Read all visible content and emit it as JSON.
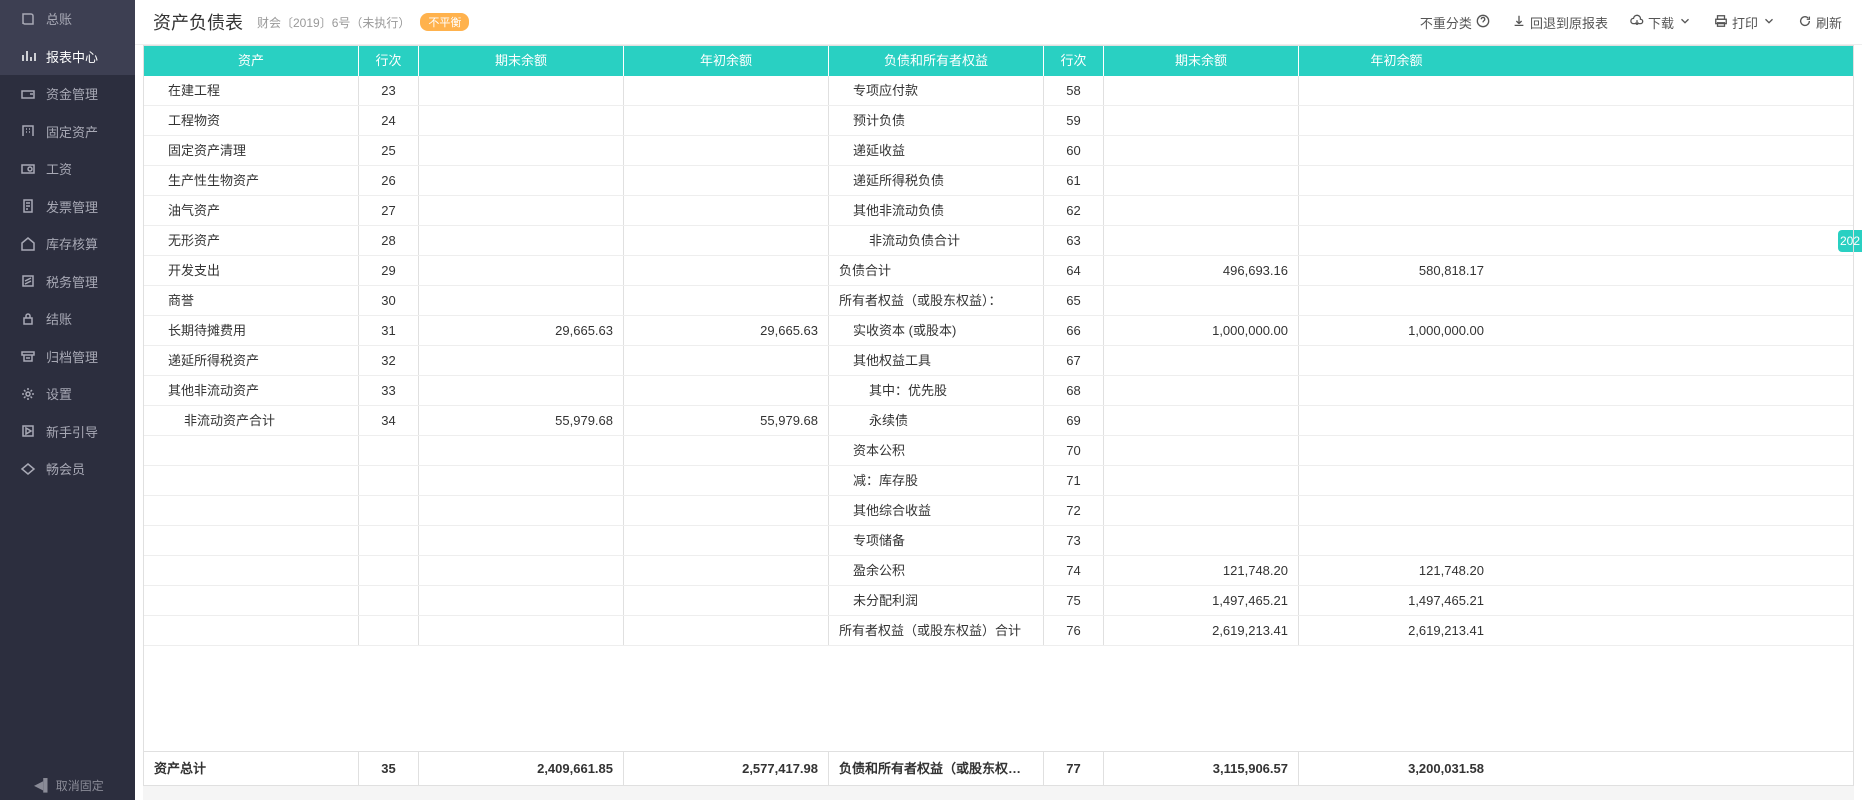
{
  "sidebar": {
    "items": [
      {
        "label": "总账",
        "icon": "book"
      },
      {
        "label": "报表中心",
        "icon": "chart",
        "active": true
      },
      {
        "label": "资金管理",
        "icon": "wallet"
      },
      {
        "label": "固定资产",
        "icon": "building"
      },
      {
        "label": "工资",
        "icon": "money"
      },
      {
        "label": "发票管理",
        "icon": "invoice"
      },
      {
        "label": "库存核算",
        "icon": "home"
      },
      {
        "label": "税务管理",
        "icon": "tax"
      },
      {
        "label": "结账",
        "icon": "lock"
      },
      {
        "label": "归档管理",
        "icon": "archive"
      },
      {
        "label": "设置",
        "icon": "gear"
      },
      {
        "label": "新手引导",
        "icon": "play"
      },
      {
        "label": "畅会员",
        "icon": "vip"
      }
    ],
    "pin": "取消固定"
  },
  "header": {
    "title": "资产负债表",
    "sub": "财会〔2019〕6号（未执行）",
    "badge": "不平衡",
    "actions": {
      "noClassify": "不重分类",
      "revert": "回退到原报表",
      "download": "下载",
      "print": "打印",
      "refresh": "刷新"
    }
  },
  "yearTab": "202",
  "table": {
    "columns": {
      "asset": "资产",
      "rowNo": "行次",
      "end": "期末余额",
      "begin": "年初余额",
      "liab": "负债和所有者权益",
      "rowNo2": "行次",
      "end2": "期末余额",
      "begin2": "年初余额"
    },
    "rows": [
      {
        "a": "在建工程",
        "ai": 1,
        "ar": "23",
        "ae": "",
        "ab": "",
        "l": "专项应付款",
        "li": 1,
        "lr": "58",
        "le": "",
        "lb": ""
      },
      {
        "a": "工程物资",
        "ai": 1,
        "ar": "24",
        "ae": "",
        "ab": "",
        "l": "预计负债",
        "li": 1,
        "lr": "59",
        "le": "",
        "lb": ""
      },
      {
        "a": "固定资产清理",
        "ai": 1,
        "ar": "25",
        "ae": "",
        "ab": "",
        "l": "递延收益",
        "li": 1,
        "lr": "60",
        "le": "",
        "lb": ""
      },
      {
        "a": "生产性生物资产",
        "ai": 1,
        "ar": "26",
        "ae": "",
        "ab": "",
        "l": "递延所得税负债",
        "li": 1,
        "lr": "61",
        "le": "",
        "lb": ""
      },
      {
        "a": "油气资产",
        "ai": 1,
        "ar": "27",
        "ae": "",
        "ab": "",
        "l": "其他非流动负债",
        "li": 1,
        "lr": "62",
        "le": "",
        "lb": ""
      },
      {
        "a": "无形资产",
        "ai": 1,
        "ar": "28",
        "ae": "",
        "ab": "",
        "l": "非流动负债合计",
        "li": 2,
        "lr": "63",
        "le": "",
        "lb": ""
      },
      {
        "a": "开发支出",
        "ai": 1,
        "ar": "29",
        "ae": "",
        "ab": "",
        "l": "负债合计",
        "li": 0,
        "lr": "64",
        "le": "496,693.16",
        "lb": "580,818.17"
      },
      {
        "a": "商誉",
        "ai": 1,
        "ar": "30",
        "ae": "",
        "ab": "",
        "l": "所有者权益（或股东权益）：",
        "li": 0,
        "lr": "65",
        "le": "",
        "lb": ""
      },
      {
        "a": "长期待摊费用",
        "ai": 1,
        "ar": "31",
        "ae": "29,665.63",
        "ab": "29,665.63",
        "l": "实收资本 (或股本)",
        "li": 1,
        "lr": "66",
        "le": "1,000,000.00",
        "lb": "1,000,000.00"
      },
      {
        "a": "递延所得税资产",
        "ai": 1,
        "ar": "32",
        "ae": "",
        "ab": "",
        "l": "其他权益工具",
        "li": 1,
        "lr": "67",
        "le": "",
        "lb": ""
      },
      {
        "a": "其他非流动资产",
        "ai": 1,
        "ar": "33",
        "ae": "",
        "ab": "",
        "l": "其中：优先股",
        "li": 2,
        "lr": "68",
        "le": "",
        "lb": ""
      },
      {
        "a": "非流动资产合计",
        "ai": 2,
        "ar": "34",
        "ae": "55,979.68",
        "ab": "55,979.68",
        "l": "永续债",
        "li": 2,
        "lr": "69",
        "le": "",
        "lb": ""
      },
      {
        "a": "",
        "ai": 0,
        "ar": "",
        "ae": "",
        "ab": "",
        "l": "资本公积",
        "li": 1,
        "lr": "70",
        "le": "",
        "lb": ""
      },
      {
        "a": "",
        "ai": 0,
        "ar": "",
        "ae": "",
        "ab": "",
        "l": "减：库存股",
        "li": 1,
        "lr": "71",
        "le": "",
        "lb": ""
      },
      {
        "a": "",
        "ai": 0,
        "ar": "",
        "ae": "",
        "ab": "",
        "l": "其他综合收益",
        "li": 1,
        "lr": "72",
        "le": "",
        "lb": ""
      },
      {
        "a": "",
        "ai": 0,
        "ar": "",
        "ae": "",
        "ab": "",
        "l": "专项储备",
        "li": 1,
        "lr": "73",
        "le": "",
        "lb": ""
      },
      {
        "a": "",
        "ai": 0,
        "ar": "",
        "ae": "",
        "ab": "",
        "l": "盈余公积",
        "li": 1,
        "lr": "74",
        "le": "121,748.20",
        "lb": "121,748.20"
      },
      {
        "a": "",
        "ai": 0,
        "ar": "",
        "ae": "",
        "ab": "",
        "l": "未分配利润",
        "li": 1,
        "lr": "75",
        "le": "1,497,465.21",
        "lb": "1,497,465.21"
      },
      {
        "a": "",
        "ai": 0,
        "ar": "",
        "ae": "",
        "ab": "",
        "l": "所有者权益（或股东权益）合计",
        "li": 0,
        "lr": "76",
        "le": "2,619,213.41",
        "lb": "2,619,213.41"
      }
    ],
    "footer": {
      "assetTotal": "资产总计",
      "ar": "35",
      "ae": "2,409,661.85",
      "ab": "2,577,417.98",
      "liabTotal": "负债和所有者权益（或股东权益）总计",
      "lr": "77",
      "le": "3,115,906.57",
      "lb": "3,200,031.58"
    }
  },
  "colors": {
    "headerBg": "#29d0c2",
    "sidebarBg": "#2c2e3e",
    "badge": "#ffb24d",
    "border": "#e0e0e0"
  }
}
